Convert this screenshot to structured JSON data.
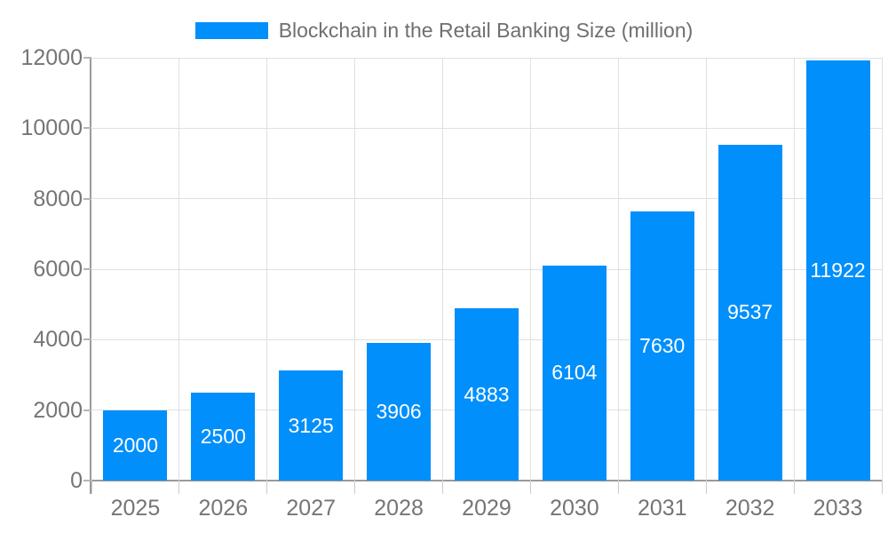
{
  "legend": {
    "label": "Blockchain in the Retail Banking Size (million)",
    "swatch_color": "#008FFB"
  },
  "chart_data": {
    "type": "bar",
    "title": "Blockchain in the Retail Banking Size (million)",
    "series_name": "Blockchain in the Retail Banking Size (million)",
    "categories": [
      "2025",
      "2026",
      "2027",
      "2028",
      "2029",
      "2030",
      "2031",
      "2032",
      "2033"
    ],
    "values": [
      2000,
      2500,
      3125,
      3906,
      4883,
      6104,
      7630,
      9537,
      11922
    ],
    "xlabel": "",
    "ylabel": "",
    "ylim": [
      0,
      12000
    ],
    "ytick_step": 2000,
    "yticks": [
      0,
      2000,
      4000,
      6000,
      8000,
      10000,
      12000
    ],
    "grid": true,
    "legend_position": "top",
    "bar_color": "#008FFB",
    "value_label_color": "#ffffff",
    "axis_label_color": "#757575",
    "gridline_color": "#e0e0e0",
    "axis_line_color": "#9a9a9a"
  }
}
